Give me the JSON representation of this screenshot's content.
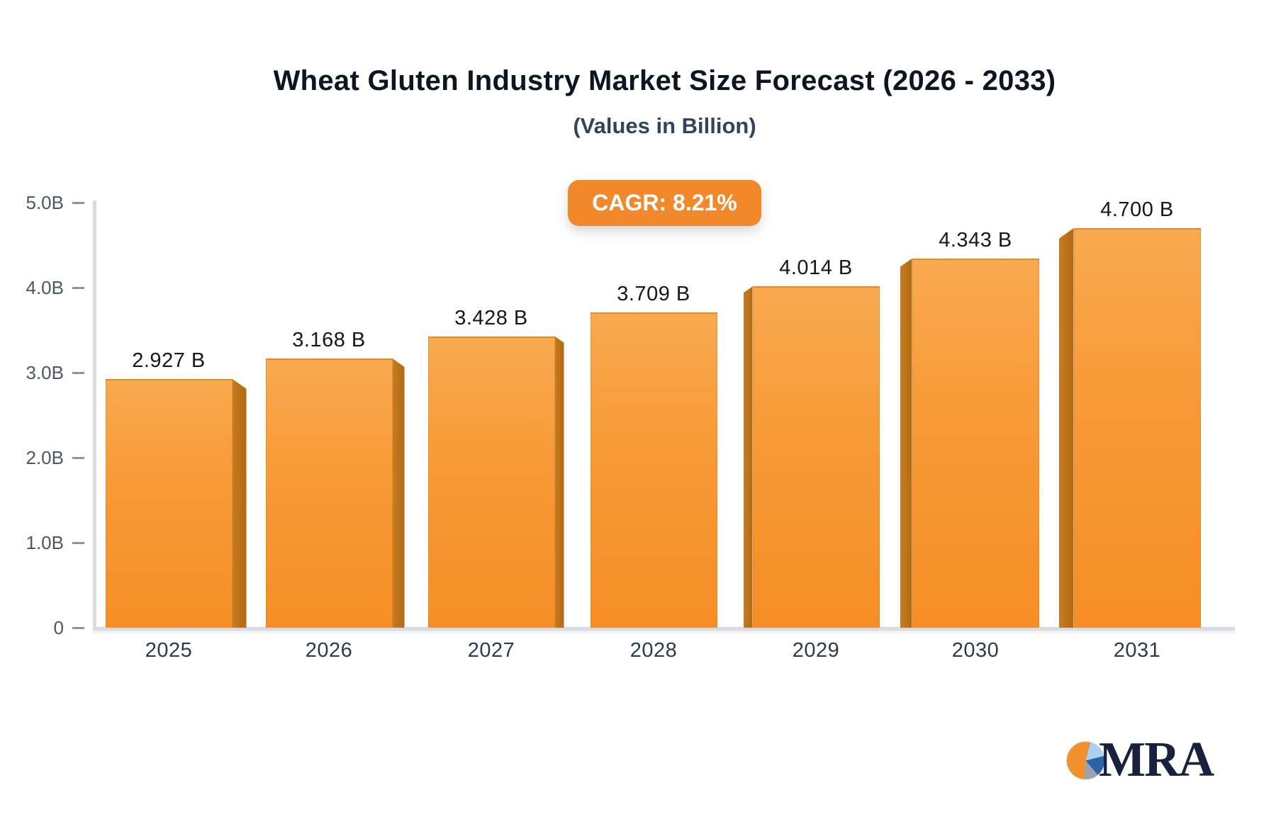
{
  "chart_data": {
    "type": "bar",
    "title": "Wheat Gluten Industry Market Size Forecast (2026 - 2033)",
    "subtitle": "(Values in Billion)",
    "annotation": "CAGR: 8.21%",
    "cagr_percent": 8.21,
    "unit": "Billion",
    "categories": [
      "2025",
      "2026",
      "2027",
      "2028",
      "2029",
      "2030",
      "2031"
    ],
    "values": [
      2.927,
      3.168,
      3.428,
      3.709,
      4.014,
      4.343,
      4.7
    ],
    "data_labels": [
      "2.927 B",
      "3.168 B",
      "3.428 B",
      "3.709 B",
      "4.014 B",
      "4.343 B",
      "4.700 B"
    ],
    "y_ticks": [
      "5.0B",
      "4.0B",
      "3.0B",
      "2.0B",
      "1.0B",
      "0"
    ],
    "y_tick_values": [
      5,
      4,
      3,
      2,
      1,
      0
    ],
    "ylim": [
      0,
      5
    ],
    "xlabel": "",
    "ylabel": "",
    "grid": false,
    "legend": "none",
    "bar_face_color": "#f79a37",
    "bar_side_color": "#ba7018",
    "accent_color": "#f1892c"
  },
  "footer": {
    "logo_text": "MRA"
  }
}
